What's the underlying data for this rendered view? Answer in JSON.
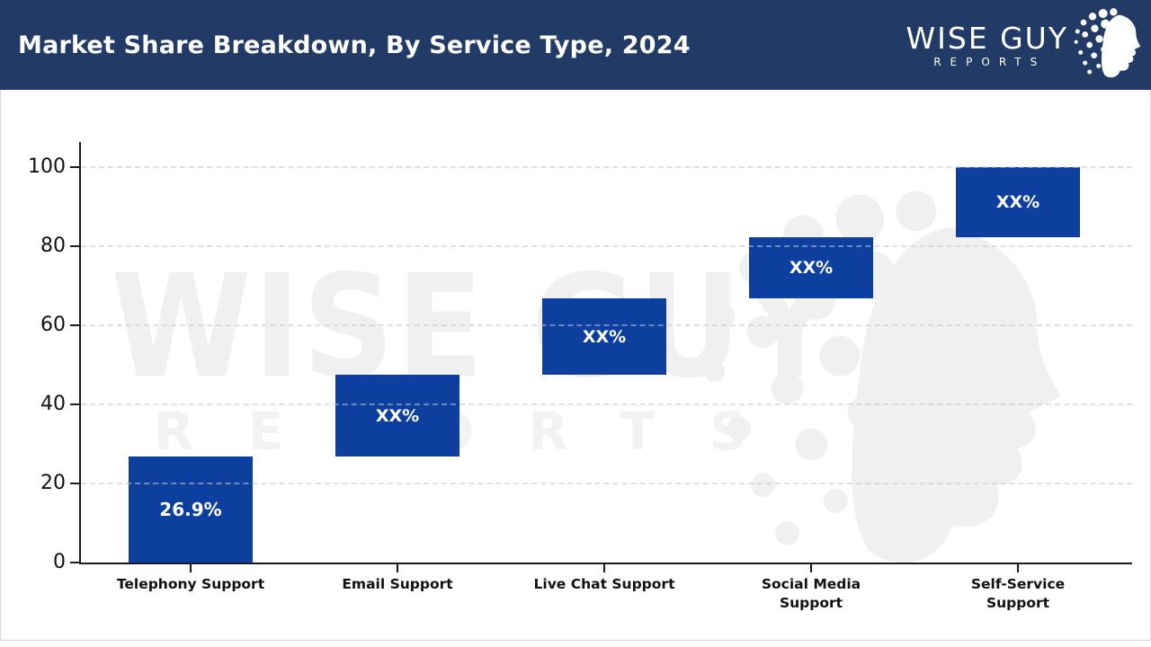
{
  "header": {
    "title": "Market Share Breakdown, By Service Type, 2024",
    "logo": {
      "primary": "WISE GUY",
      "secondary": "REPORTS",
      "icon": "head-profile-dots-icon"
    },
    "background_color": "#213a66"
  },
  "watermark": {
    "primary": "WISE GUY",
    "secondary": "REPORTS",
    "icon": "head-profile-dots-icon"
  },
  "chart_data": {
    "type": "bar",
    "subtype": "waterfall",
    "title": "Market Share Breakdown, By Service Type, 2024",
    "categories": [
      "Telephony Support",
      "Email Support",
      "Live Chat Support",
      "Social Media\nSupport",
      "Self-Service\nSupport"
    ],
    "bars": [
      {
        "category": "Telephony Support",
        "start": 0,
        "end": 26.9,
        "label": "26.9%"
      },
      {
        "category": "Email Support",
        "start": 26.9,
        "end": 47.4,
        "label": "XX%"
      },
      {
        "category": "Live Chat Support",
        "start": 47.4,
        "end": 66.8,
        "label": "XX%"
      },
      {
        "category": "Social Media Support",
        "start": 66.8,
        "end": 82.3,
        "label": "XX%"
      },
      {
        "category": "Self-Service Support",
        "start": 82.3,
        "end": 100,
        "label": "XX%"
      }
    ],
    "yticks": [
      0,
      20,
      40,
      60,
      80,
      100
    ],
    "ylim": [
      0,
      100
    ],
    "xlabel": "",
    "ylabel": "",
    "grid": "horizontal-dashed",
    "legend": "none",
    "bar_color": "#0d3f9e",
    "bar_label_color": "#ffffff",
    "axis_color": "#1a1a1a"
  }
}
